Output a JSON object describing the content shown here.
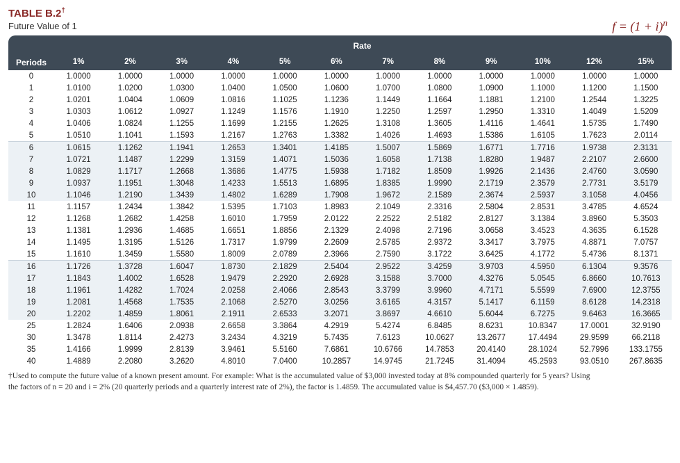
{
  "title": "TABLE B.2",
  "title_dagger": "†",
  "subtitle": "Future Value of 1",
  "formula_prefix": "f = (1 + i)",
  "formula_exponent": "n",
  "header": {
    "rate_label": "Rate",
    "periods_label": "Periods",
    "rates": [
      "1%",
      "2%",
      "3%",
      "4%",
      "5%",
      "6%",
      "7%",
      "8%",
      "9%",
      "10%",
      "12%",
      "15%"
    ]
  },
  "shade_groups": [
    [
      6,
      7,
      8,
      9,
      10
    ],
    [
      16,
      17,
      18,
      19,
      20
    ]
  ],
  "rows": [
    {
      "p": "0",
      "v": [
        "1.0000",
        "1.0000",
        "1.0000",
        "1.0000",
        "1.0000",
        "1.0000",
        "1.0000",
        "1.0000",
        "1.0000",
        "1.0000",
        "1.0000",
        "1.0000"
      ]
    },
    {
      "p": "1",
      "v": [
        "1.0100",
        "1.0200",
        "1.0300",
        "1.0400",
        "1.0500",
        "1.0600",
        "1.0700",
        "1.0800",
        "1.0900",
        "1.1000",
        "1.1200",
        "1.1500"
      ]
    },
    {
      "p": "2",
      "v": [
        "1.0201",
        "1.0404",
        "1.0609",
        "1.0816",
        "1.1025",
        "1.1236",
        "1.1449",
        "1.1664",
        "1.1881",
        "1.2100",
        "1.2544",
        "1.3225"
      ]
    },
    {
      "p": "3",
      "v": [
        "1.0303",
        "1.0612",
        "1.0927",
        "1.1249",
        "1.1576",
        "1.1910",
        "1.2250",
        "1.2597",
        "1.2950",
        "1.3310",
        "1.4049",
        "1.5209"
      ]
    },
    {
      "p": "4",
      "v": [
        "1.0406",
        "1.0824",
        "1.1255",
        "1.1699",
        "1.2155",
        "1.2625",
        "1.3108",
        "1.3605",
        "1.4116",
        "1.4641",
        "1.5735",
        "1.7490"
      ]
    },
    {
      "p": "5",
      "v": [
        "1.0510",
        "1.1041",
        "1.1593",
        "1.2167",
        "1.2763",
        "1.3382",
        "1.4026",
        "1.4693",
        "1.5386",
        "1.6105",
        "1.7623",
        "2.0114"
      ]
    },
    {
      "p": "6",
      "v": [
        "1.0615",
        "1.1262",
        "1.1941",
        "1.2653",
        "1.3401",
        "1.4185",
        "1.5007",
        "1.5869",
        "1.6771",
        "1.7716",
        "1.9738",
        "2.3131"
      ]
    },
    {
      "p": "7",
      "v": [
        "1.0721",
        "1.1487",
        "1.2299",
        "1.3159",
        "1.4071",
        "1.5036",
        "1.6058",
        "1.7138",
        "1.8280",
        "1.9487",
        "2.2107",
        "2.6600"
      ]
    },
    {
      "p": "8",
      "v": [
        "1.0829",
        "1.1717",
        "1.2668",
        "1.3686",
        "1.4775",
        "1.5938",
        "1.7182",
        "1.8509",
        "1.9926",
        "2.1436",
        "2.4760",
        "3.0590"
      ]
    },
    {
      "p": "9",
      "v": [
        "1.0937",
        "1.1951",
        "1.3048",
        "1.4233",
        "1.5513",
        "1.6895",
        "1.8385",
        "1.9990",
        "2.1719",
        "2.3579",
        "2.7731",
        "3.5179"
      ]
    },
    {
      "p": "10",
      "v": [
        "1.1046",
        "1.2190",
        "1.3439",
        "1.4802",
        "1.6289",
        "1.7908",
        "1.9672",
        "2.1589",
        "2.3674",
        "2.5937",
        "3.1058",
        "4.0456"
      ]
    },
    {
      "p": "11",
      "v": [
        "1.1157",
        "1.2434",
        "1.3842",
        "1.5395",
        "1.7103",
        "1.8983",
        "2.1049",
        "2.3316",
        "2.5804",
        "2.8531",
        "3.4785",
        "4.6524"
      ]
    },
    {
      "p": "12",
      "v": [
        "1.1268",
        "1.2682",
        "1.4258",
        "1.6010",
        "1.7959",
        "2.0122",
        "2.2522",
        "2.5182",
        "2.8127",
        "3.1384",
        "3.8960",
        "5.3503"
      ]
    },
    {
      "p": "13",
      "v": [
        "1.1381",
        "1.2936",
        "1.4685",
        "1.6651",
        "1.8856",
        "2.1329",
        "2.4098",
        "2.7196",
        "3.0658",
        "3.4523",
        "4.3635",
        "6.1528"
      ]
    },
    {
      "p": "14",
      "v": [
        "1.1495",
        "1.3195",
        "1.5126",
        "1.7317",
        "1.9799",
        "2.2609",
        "2.5785",
        "2.9372",
        "3.3417",
        "3.7975",
        "4.8871",
        "7.0757"
      ]
    },
    {
      "p": "15",
      "v": [
        "1.1610",
        "1.3459",
        "1.5580",
        "1.8009",
        "2.0789",
        "2.3966",
        "2.7590",
        "3.1722",
        "3.6425",
        "4.1772",
        "5.4736",
        "8.1371"
      ]
    },
    {
      "p": "16",
      "v": [
        "1.1726",
        "1.3728",
        "1.6047",
        "1.8730",
        "2.1829",
        "2.5404",
        "2.9522",
        "3.4259",
        "3.9703",
        "4.5950",
        "6.1304",
        "9.3576"
      ]
    },
    {
      "p": "17",
      "v": [
        "1.1843",
        "1.4002",
        "1.6528",
        "1.9479",
        "2.2920",
        "2.6928",
        "3.1588",
        "3.7000",
        "4.3276",
        "5.0545",
        "6.8660",
        "10.7613"
      ]
    },
    {
      "p": "18",
      "v": [
        "1.1961",
        "1.4282",
        "1.7024",
        "2.0258",
        "2.4066",
        "2.8543",
        "3.3799",
        "3.9960",
        "4.7171",
        "5.5599",
        "7.6900",
        "12.3755"
      ]
    },
    {
      "p": "19",
      "v": [
        "1.2081",
        "1.4568",
        "1.7535",
        "2.1068",
        "2.5270",
        "3.0256",
        "3.6165",
        "4.3157",
        "5.1417",
        "6.1159",
        "8.6128",
        "14.2318"
      ]
    },
    {
      "p": "20",
      "v": [
        "1.2202",
        "1.4859",
        "1.8061",
        "2.1911",
        "2.6533",
        "3.2071",
        "3.8697",
        "4.6610",
        "5.6044",
        "6.7275",
        "9.6463",
        "16.3665"
      ]
    },
    {
      "p": "25",
      "v": [
        "1.2824",
        "1.6406",
        "2.0938",
        "2.6658",
        "3.3864",
        "4.2919",
        "5.4274",
        "6.8485",
        "8.6231",
        "10.8347",
        "17.0001",
        "32.9190"
      ]
    },
    {
      "p": "30",
      "v": [
        "1.3478",
        "1.8114",
        "2.4273",
        "3.2434",
        "4.3219",
        "5.7435",
        "7.6123",
        "10.0627",
        "13.2677",
        "17.4494",
        "29.9599",
        "66.2118"
      ]
    },
    {
      "p": "35",
      "v": [
        "1.4166",
        "1.9999",
        "2.8139",
        "3.9461",
        "5.5160",
        "7.6861",
        "10.6766",
        "14.7853",
        "20.4140",
        "28.1024",
        "52.7996",
        "133.1755"
      ]
    },
    {
      "p": "40",
      "v": [
        "1.4889",
        "2.2080",
        "3.2620",
        "4.8010",
        "7.0400",
        "10.2857",
        "14.9745",
        "21.7245",
        "31.4094",
        "45.2593",
        "93.0510",
        "267.8635"
      ]
    }
  ],
  "footnote_line1": "†Used to compute the future value of a known present amount. For example: What is the accumulated value of $3,000 invested today at 8% compounded quarterly for 5 years? Using",
  "footnote_line2": "the factors of n = 20 and i = 2% (20 quarterly periods and a quarterly interest rate of 2%), the factor is 1.4859. The accumulated value is $4,457.70 ($3,000 × 1.4859).",
  "colors": {
    "heading": "#8a2a28",
    "thead_bg": "#3e4a56",
    "shade_bg": "#ecf1f5"
  }
}
